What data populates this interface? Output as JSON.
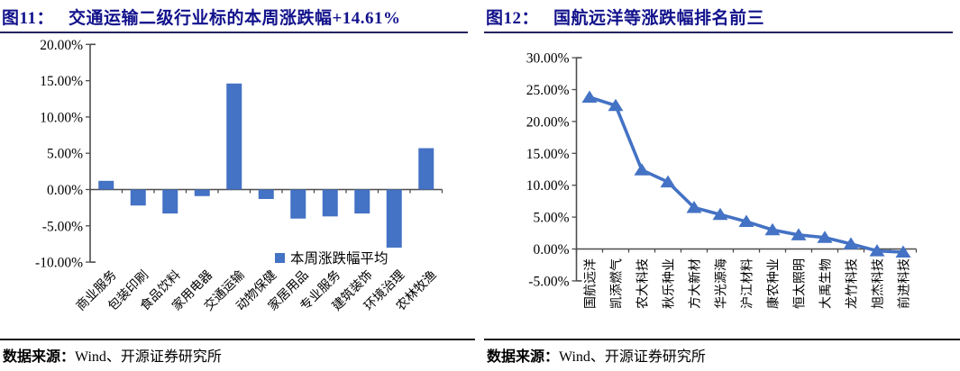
{
  "colors": {
    "accent_blue": "#4472C4",
    "title_navy": "#12128C",
    "rule_navy": "#23235E",
    "axis_gray": "#4d4d4d"
  },
  "panels": [
    {
      "figure_label": "图11：",
      "title": "交通运输二级行业标的本周涨跌幅+14.61%",
      "source_label": "数据来源：",
      "source_text": "Wind、开源证券研究所"
    },
    {
      "figure_label": "图12：",
      "title": "国航远洋等涨跌幅排名前三",
      "source_label": "数据来源：",
      "source_text": "Wind、开源证券研究所"
    }
  ],
  "chart_data": [
    {
      "type": "bar",
      "title": "交通运输二级行业标的本周涨跌幅+14.61%",
      "categories": [
        "商业服务",
        "包装印刷",
        "食品饮料",
        "家用电器",
        "交通运输",
        "动物保健",
        "家居用品",
        "专业服务",
        "建筑装饰",
        "环境治理",
        "农林牧渔"
      ],
      "values": [
        1.2,
        -2.2,
        -3.3,
        -0.9,
        14.61,
        -1.3,
        -4.0,
        -3.7,
        -3.3,
        -8.0,
        5.7
      ],
      "legend": [
        "本周涨跌幅平均"
      ],
      "legend_position": "bottom-right",
      "xlabel": "",
      "ylabel": "",
      "ylim": [
        -10,
        20
      ],
      "ytick_values": [
        20,
        15,
        10,
        5,
        0,
        -5,
        -10
      ],
      "ytick_labels": [
        "20.00%",
        "15.00%",
        "10.00%",
        "5.00%",
        "0.00%",
        "-5.00%",
        "-10.00%"
      ],
      "grid": false,
      "bar_color": "#4472C4"
    },
    {
      "type": "line",
      "marker": "triangle-up",
      "title": "国航远洋等涨跌幅排名前三",
      "categories": [
        "国航远洋",
        "凯添燃气",
        "农大科技",
        "秋乐种业",
        "方大新材",
        "华光源海",
        "沪江材料",
        "康农种业",
        "恒太照明",
        "大禹生物",
        "龙竹科技",
        "旭杰科技",
        "前进科技"
      ],
      "values": [
        23.8,
        22.5,
        12.4,
        10.5,
        6.5,
        5.4,
        4.3,
        3.0,
        2.2,
        1.8,
        0.8,
        -0.3,
        -0.5
      ],
      "xlabel": "",
      "ylabel": "",
      "ylim": [
        -5,
        30
      ],
      "ytick_values": [
        30,
        25,
        20,
        15,
        10,
        5,
        0,
        -5
      ],
      "ytick_labels": [
        "30.00%",
        "25.00%",
        "20.00%",
        "15.00%",
        "10.00%",
        "5.00%",
        "0.00%",
        "-5.00%"
      ],
      "grid": false,
      "line_color": "#4472C4"
    }
  ]
}
